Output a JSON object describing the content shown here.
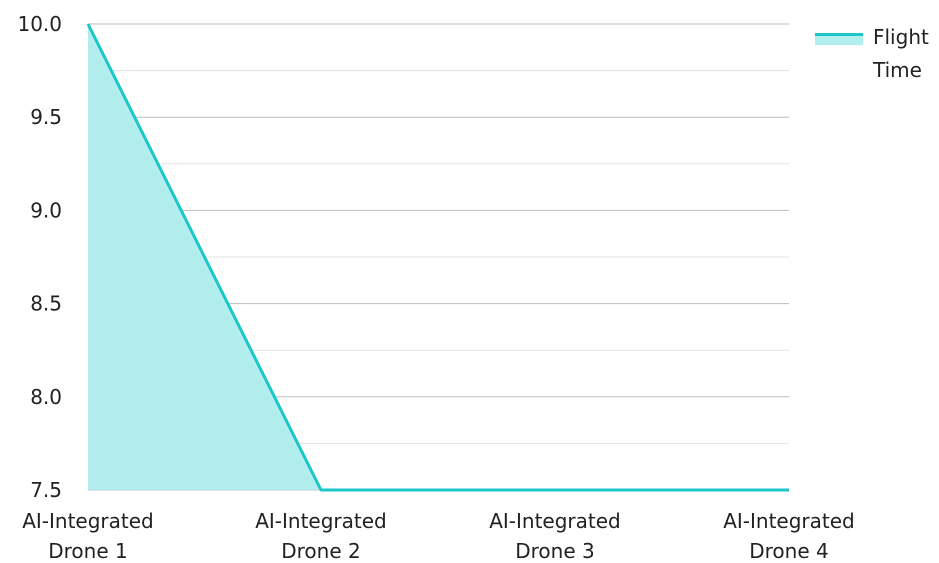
{
  "chart_data": {
    "type": "area",
    "categories": [
      [
        "AI-Integrated",
        "Drone 1"
      ],
      [
        "AI-Integrated",
        "Drone 2"
      ],
      [
        "AI-Integrated",
        "Drone 3"
      ],
      [
        "AI-Integrated",
        "Drone 4"
      ]
    ],
    "series": [
      {
        "name": "Flight Time",
        "values": [
          10.0,
          7.5,
          7.5,
          7.5
        ],
        "line_color": "#1cc5c9",
        "fill_color": "#b2eeee"
      }
    ],
    "ylim": [
      7.5,
      10.0
    ],
    "y_major_ticks": [
      "7.5",
      "8.0",
      "8.5",
      "9.0",
      "9.5",
      "10.0"
    ],
    "y_minor_step": 0.25,
    "grid": true,
    "grid_color": "#c8c8c8",
    "legend": {
      "placement": "top-right",
      "label_lines": [
        "Flight",
        "Time"
      ]
    }
  }
}
